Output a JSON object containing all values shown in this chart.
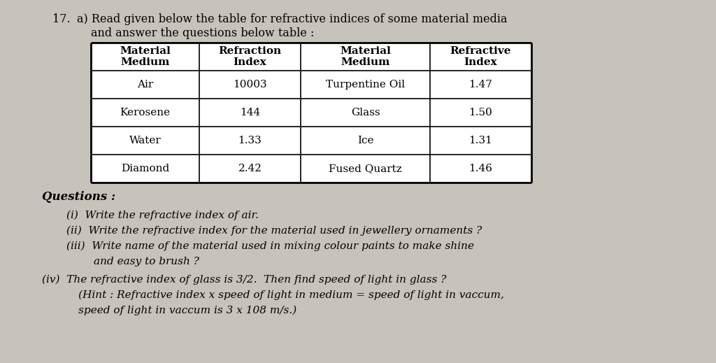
{
  "background_color": "#c8c3ba",
  "page_number": "17.",
  "title_text": "a) Read given below the table for refractive indices of some material media",
  "title_line2": "and answer the questions below table :",
  "table_headers": [
    "Material\nMedium",
    "Refraction\nIndex",
    "Material\nMedium",
    "Refractive\nIndex"
  ],
  "table_rows": [
    [
      "Air",
      "10003",
      "Turpentine Oil",
      "1.47"
    ],
    [
      "Kerosene",
      "144",
      "Glass",
      "1.50"
    ],
    [
      "Water",
      "1.33",
      "Ice",
      "1.31"
    ],
    [
      "Diamond",
      "2.42",
      "Fused Quartz",
      "1.46"
    ]
  ],
  "questions_label": "Questions :",
  "q1": "(i)  Write the refractive index of air.",
  "q2": "(ii)  Write the refractive index for the material used in jewellery ornaments ?",
  "q3a": "(iii)  Write name of the material used in mixing colour paints to make shine",
  "q3b": "        and easy to brush ?",
  "q4a": "(iv)  The refractive index of glass is 3/2.  Then find speed of light in glass ?",
  "q4b": "       (Hint : Refractive index x speed of light in medium = speed of light in vaccum,",
  "q4c": "       speed of light in vaccum is 3 x 108 m/s.)",
  "font_size_title": 11.5,
  "font_size_table_header": 11,
  "font_size_table_data": 11,
  "font_size_questions_label": 12,
  "font_size_questions": 11
}
